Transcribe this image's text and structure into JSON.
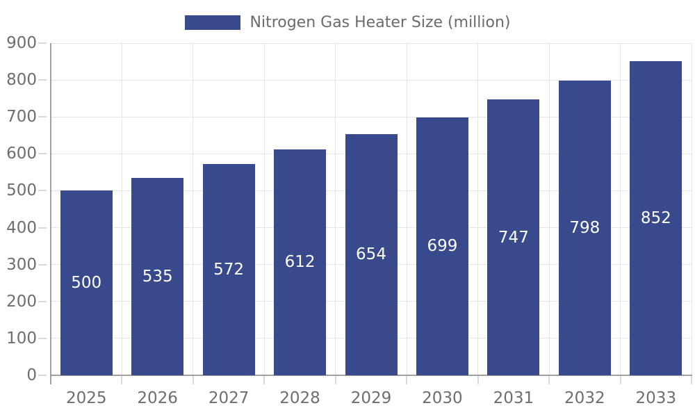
{
  "legend": {
    "label": "Nitrogen Gas Heater Size (million)",
    "swatch_color": "#384A8B"
  },
  "chart_data": {
    "type": "bar",
    "title": "Nitrogen Gas Heater Size (million)",
    "categories": [
      "2025",
      "2026",
      "2027",
      "2028",
      "2029",
      "2030",
      "2031",
      "2032",
      "2033"
    ],
    "values": [
      500,
      535,
      572,
      612,
      654,
      699,
      747,
      798,
      852
    ],
    "xlabel": "",
    "ylabel": "",
    "ylim": [
      0,
      900
    ],
    "ytick_step": 100,
    "yticks": [
      0,
      100,
      200,
      300,
      400,
      500,
      600,
      700,
      800,
      900
    ],
    "grid": true,
    "legend_position": "top-center",
    "bar_color": "#384A8B",
    "value_label_color": "#ffffff",
    "axis_label_color": "#6e6e6e",
    "grid_color": "#e5e5e5",
    "tick_color": "#d9d9d9",
    "axis_line_color": "#a0a0a0"
  }
}
